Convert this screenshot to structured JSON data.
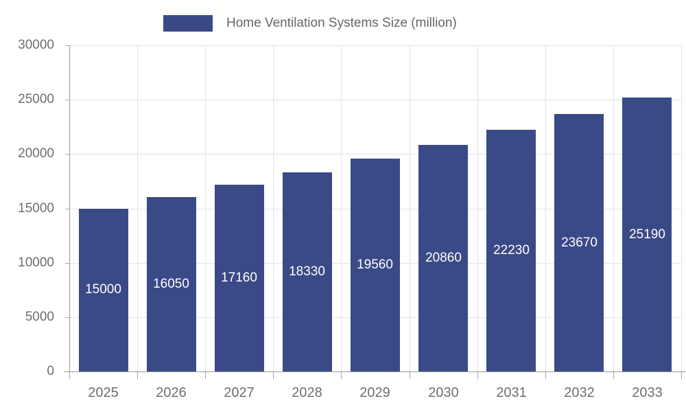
{
  "chart_data": {
    "type": "bar",
    "title": "Home Ventilation Systems Size (million)",
    "categories": [
      "2025",
      "2026",
      "2027",
      "2028",
      "2029",
      "2030",
      "2031",
      "2032",
      "2033"
    ],
    "values": [
      15000,
      16050,
      17160,
      18330,
      19560,
      20860,
      22230,
      23670,
      25190
    ],
    "xlabel": "",
    "ylabel": "",
    "ylim": [
      0,
      30000
    ],
    "ytick_step": 5000,
    "y_tick_labels": [
      "0",
      "5000",
      "10000",
      "15000",
      "20000",
      "25000",
      "30000"
    ],
    "grid": true,
    "legend_position": "top-center",
    "value_label_position": "inside-middle",
    "colors": {
      "bar": "#3A4A87",
      "value_label": "#FFFFFF",
      "axis_line": "#999999",
      "tick_mark": "#AAAAAA",
      "gridline": "#E3E3E3",
      "tick_label": "#6E6E6E",
      "legend_text": "#666666",
      "background": "#FFFFFF"
    }
  }
}
